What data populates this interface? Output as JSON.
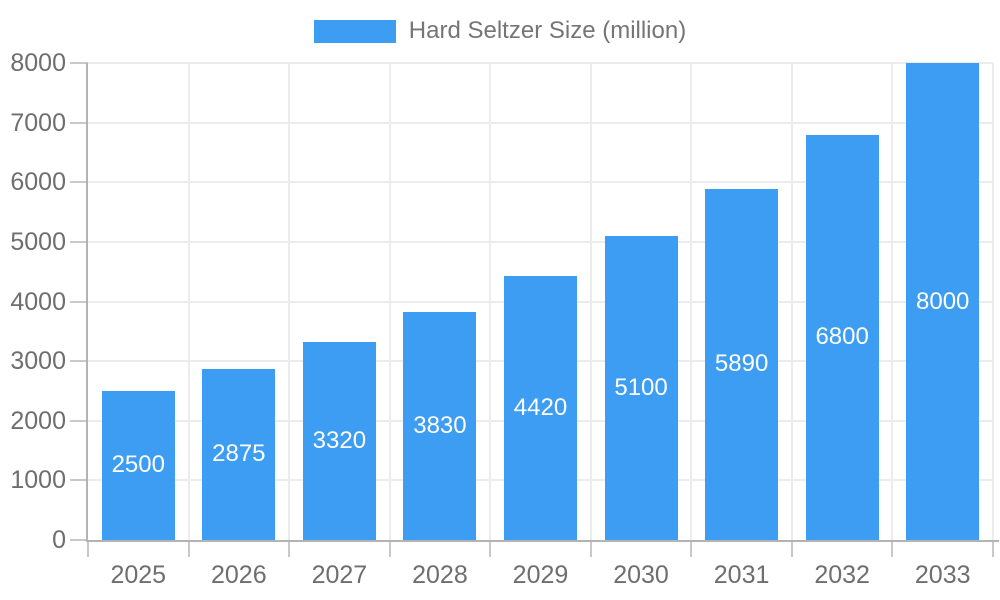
{
  "legend": {
    "label": "Hard Seltzer Size (million)"
  },
  "style": {
    "bar": "#3d9df3",
    "grid": "#ececec",
    "tick": "#c9c9c9",
    "axis": "#b3b3b3",
    "tick_label_color": "#6e6e6e",
    "legend_text_color": "#757575",
    "value_label_color": "#ffffff",
    "background": "#ffffff"
  },
  "chart_data": {
    "type": "bar",
    "title": "Hard Seltzer Size (million)",
    "series_name": "Hard Seltzer Size (million)",
    "categories": [
      "2025",
      "2026",
      "2027",
      "2028",
      "2029",
      "2030",
      "2031",
      "2032",
      "2033"
    ],
    "values": [
      2500,
      2875,
      3320,
      3830,
      4420,
      5100,
      5890,
      6800,
      8000
    ],
    "value_labels_shown": [
      "2500",
      "2875",
      "3320",
      "3830",
      "4420",
      "5100",
      "5890",
      "6800",
      "8000"
    ],
    "y_tick_labels": [
      "0",
      "1000",
      "2000",
      "3000",
      "4000",
      "5000",
      "6000",
      "7000",
      "8000"
    ],
    "xlabel": "",
    "ylabel": "",
    "ylim": [
      0,
      8000
    ],
    "ytick_step": 1000,
    "grid": true,
    "legend_position": "top-center",
    "value_label_position": "inside-middle"
  }
}
